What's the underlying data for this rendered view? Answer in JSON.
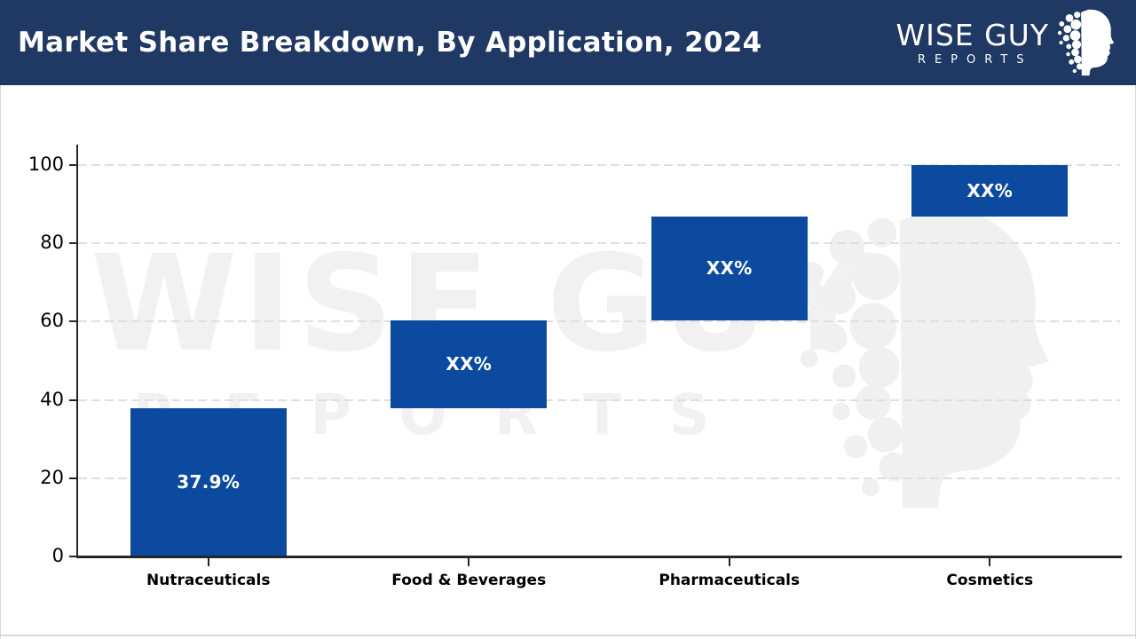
{
  "header": {
    "title": "Market Share Breakdown, By Application, 2024",
    "logo": {
      "line1": "WISE GUY",
      "line2": "REPORTS"
    }
  },
  "watermark": {
    "line1": "WISE GUY",
    "line2": "REPORTS"
  },
  "chart_data": {
    "type": "bar",
    "variant": "waterfall market-share breakdown, floating bars",
    "title": "Market Share Breakdown, By Application, 2024",
    "categories": [
      "Nutraceuticals",
      "Food & Beverages",
      "Pharmaceuticals",
      "Cosmetics"
    ],
    "segments": [
      {
        "category": "Nutraceuticals",
        "label": "37.9%",
        "start": 0,
        "end": 37.9,
        "value": 37.9
      },
      {
        "category": "Food & Beverages",
        "label": "XX%",
        "start": 37.9,
        "end": 60.4,
        "value_est": 22.5
      },
      {
        "category": "Pharmaceuticals",
        "label": "XX%",
        "start": 60.4,
        "end": 86.9,
        "value_est": 26.5
      },
      {
        "category": "Cosmetics",
        "label": "XX%",
        "start": 86.9,
        "end": 100,
        "value_est": 13.1
      }
    ],
    "ylim": [
      0,
      100
    ],
    "yticks": [
      0,
      20,
      40,
      60,
      80,
      100
    ],
    "xlabel": "",
    "ylabel": "",
    "grid": "horizontal dashed, behind bars",
    "legend": "none",
    "colors": {
      "bar": "#0b4a9f",
      "bar_label": "#ffffff",
      "header_bg": "#1f3864",
      "axis": "#262626",
      "gridline": "#dfdfdf",
      "watermark": "#f1f1f2",
      "background": "#ffffff"
    }
  }
}
